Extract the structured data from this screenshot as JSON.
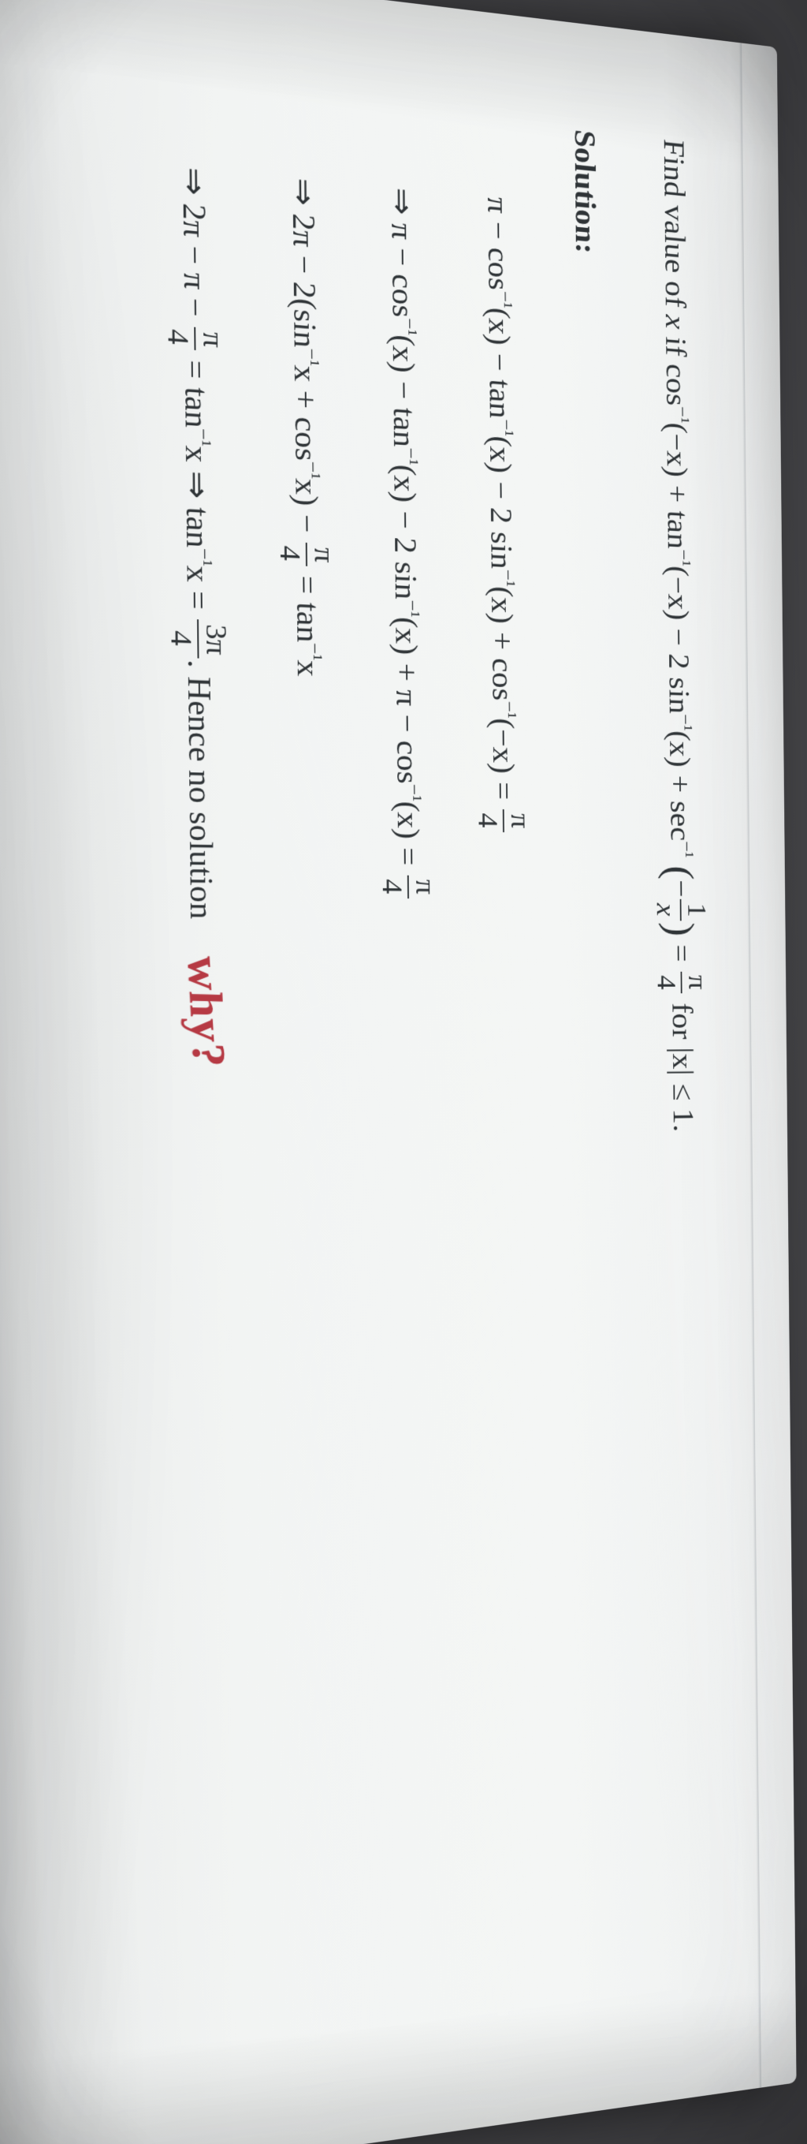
{
  "colors": {
    "paper_base": "#f2f4f3",
    "paper_shadow": "#e7e9e9",
    "ink": "#2f3437",
    "red_ink": "#b63a44",
    "stage_bg": "#3a3a3c"
  },
  "typography": {
    "body_fontsize_pt": 32,
    "headline_weight": 700,
    "math_weight": 400,
    "handwriting_fontsize_pt": 45
  },
  "problem": {
    "prompt_prefix": "Find value of ",
    "prompt_var": "x",
    "prompt_if": " if ",
    "lhs_1": "cos",
    "lhs_1_sup": "−¹",
    "lhs_1_arg": "(−x)",
    "plus1": " + ",
    "lhs_2": "tan",
    "lhs_2_sup": "−¹",
    "lhs_2_arg": "(−x)",
    "minus1": " − ",
    "lhs_3_coef": "2 ",
    "lhs_3": "sin",
    "lhs_3_sup": "−¹",
    "lhs_3_arg": "(x)",
    "plus2": " + ",
    "lhs_4": "sec",
    "lhs_4_sup": "−¹",
    "lhs_4_open": "(",
    "lhs_4_frac_num": "1",
    "lhs_4_frac_den": "x",
    "lhs_4_neg": "−",
    "lhs_4_close": ")",
    "equals": " = ",
    "rhs_frac_num": "π",
    "rhs_frac_den": "4",
    "for_text": " for ",
    "cond": "|x| ≤ 1."
  },
  "solution": {
    "heading": "Solution:",
    "line1": {
      "t1": "π − cos",
      "sup1": "−¹",
      "t2": "(x) − tan",
      "sup2": "−¹",
      "t3": "(x) − 2 sin",
      "sup3": "−¹",
      "t4": "(x) + cos",
      "sup4": "−¹",
      "t5": "(−x) = ",
      "frac_num": "π",
      "frac_den": "4"
    },
    "line2": {
      "arrow": "⇒ ",
      "t1": "π − cos",
      "sup1": "−¹",
      "t2": "(x) − tan",
      "sup2": "−¹",
      "t3": "(x) − 2 sin",
      "sup3": "−¹",
      "t4": "(x) + π − cos",
      "sup4": "−¹",
      "t5": "(x) = ",
      "frac_num": "π",
      "frac_den": "4"
    },
    "line3": {
      "arrow": "⇒ ",
      "t1": "2π − 2(sin",
      "sup1": "−¹",
      "t2": "x + cos",
      "sup2": "−¹",
      "t3": "x) − ",
      "frac1_num": "π",
      "frac1_den": "4",
      "t4": " = tan",
      "sup3": "−¹",
      "t5": "x"
    },
    "line4": {
      "arrow": "⇒ ",
      "t1": "2π − π − ",
      "frac1_num": "π",
      "frac1_den": "4",
      "t2": " = tan",
      "sup1": "−¹",
      "t3": "x ⇒ tan",
      "sup2": "−¹",
      "t4": "x = ",
      "frac2_num": "3π",
      "frac2_den": "4",
      "t5": ". Hence no solution"
    }
  },
  "annotation": {
    "text": "why?"
  }
}
